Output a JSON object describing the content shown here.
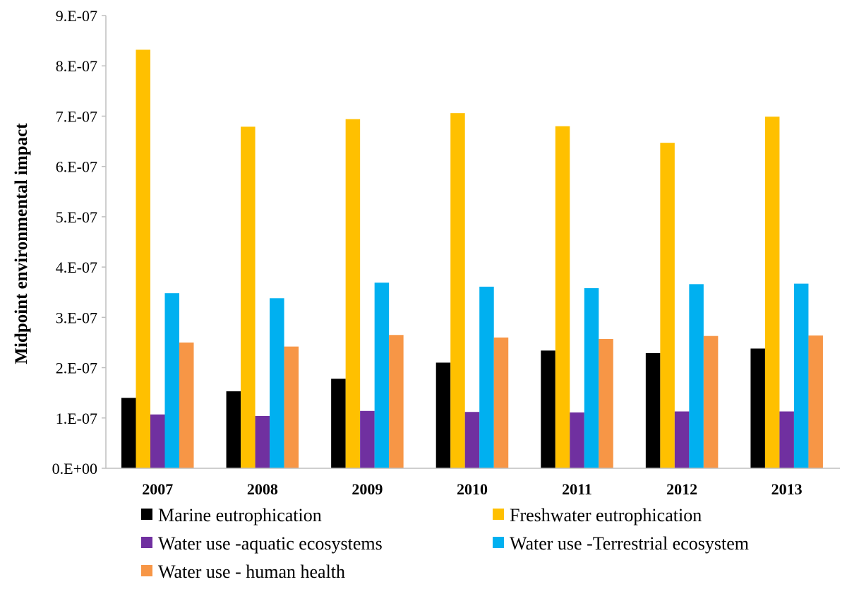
{
  "chart_data": {
    "type": "bar",
    "title": "",
    "xlabel": "",
    "ylabel": "Midpoint environmental impact",
    "ylim": [
      0,
      9e-07
    ],
    "yticks": [
      {
        "value": 0,
        "label": "0.E+00"
      },
      {
        "value": 1e-07,
        "label": "1.E-07"
      },
      {
        "value": 2e-07,
        "label": "2.E-07"
      },
      {
        "value": 3e-07,
        "label": "3.E-07"
      },
      {
        "value": 4e-07,
        "label": "4.E-07"
      },
      {
        "value": 5e-07,
        "label": "5.E-07"
      },
      {
        "value": 6e-07,
        "label": "6.E-07"
      },
      {
        "value": 7e-07,
        "label": "7.E-07"
      },
      {
        "value": 8e-07,
        "label": "8.E-07"
      },
      {
        "value": 9e-07,
        "label": "9.E-07"
      }
    ],
    "categories": [
      "2007",
      "2008",
      "2009",
      "2010",
      "2011",
      "2012",
      "2013"
    ],
    "grid": false,
    "legend_position": "bottom",
    "series": [
      {
        "name": "Marine eutrophication",
        "color": "#000000",
        "values": [
          1.4e-07,
          1.53e-07,
          1.78e-07,
          2.1e-07,
          2.34e-07,
          2.29e-07,
          2.38e-07
        ]
      },
      {
        "name": "Freshwater eutrophication",
        "color": "#FFC000",
        "values": [
          8.32e-07,
          6.79e-07,
          6.94e-07,
          7.06e-07,
          6.8e-07,
          6.47e-07,
          6.99e-07
        ]
      },
      {
        "name": "Water use -aquatic ecosystems",
        "color": "#7030A0",
        "values": [
          1.07e-07,
          1.04e-07,
          1.14e-07,
          1.12e-07,
          1.11e-07,
          1.13e-07,
          1.13e-07
        ]
      },
      {
        "name": "Water use -Terrestrial ecosystem",
        "color": "#00B0F0",
        "values": [
          3.48e-07,
          3.38e-07,
          3.69e-07,
          3.61e-07,
          3.58e-07,
          3.66e-07,
          3.67e-07
        ]
      },
      {
        "name": "Water use - human health",
        "color": "#F79646",
        "values": [
          2.5e-07,
          2.42e-07,
          2.65e-07,
          2.6e-07,
          2.57e-07,
          2.63e-07,
          2.64e-07
        ]
      }
    ]
  }
}
